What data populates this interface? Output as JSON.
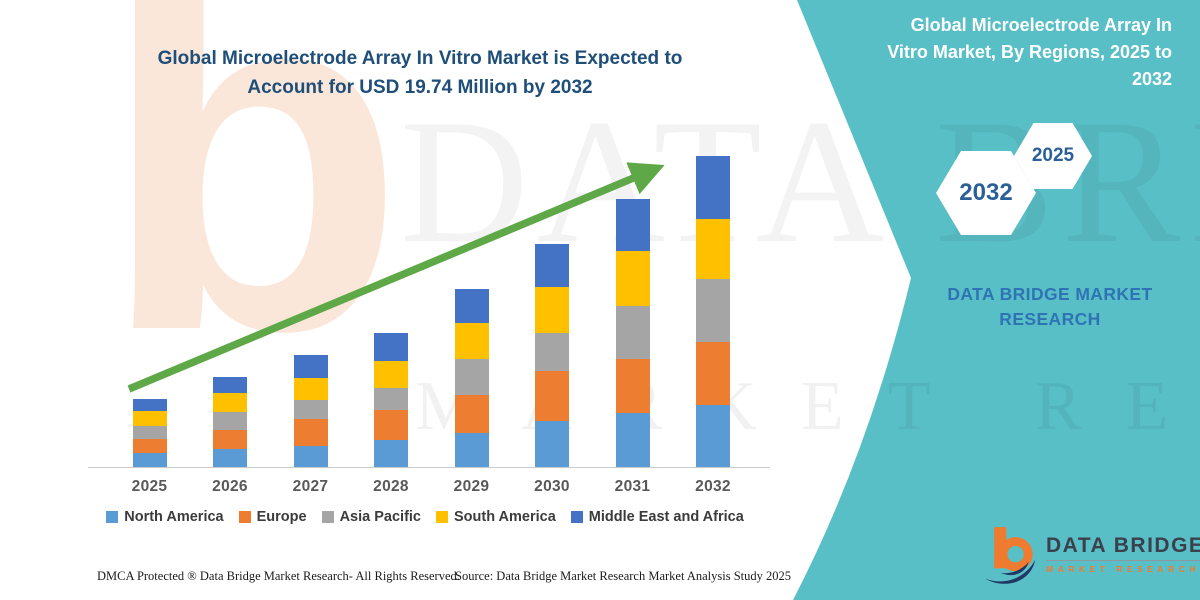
{
  "colors": {
    "teal": "#59BFC6",
    "title_navy": "#1F4E79",
    "brand_blue": "#2E74B5",
    "hex_navy": "#2B5F97",
    "axis_label_gray": "#595959",
    "legend_text": "#3B3B3B",
    "arrow_green": "#5FA848",
    "logo_orange": "#EE7B2F",
    "logo_navy": "#1F3864",
    "logo_gray": "#3A414D"
  },
  "chart": {
    "title_line1": "Global Microelectrode Array In Vitro Market is Expected to",
    "title_line2": "Account for USD 19.74 Million by 2032"
  },
  "chart_data": {
    "type": "bar",
    "stacked": true,
    "title": "Global Microelectrode Array In Vitro Market is Expected to Account for USD 19.74 Million by 2032",
    "unit": "USD Million",
    "xlabel": "",
    "ylabel": "",
    "grid": false,
    "legend_position": "bottom",
    "trend_arrow": true,
    "annotation": "USD 19.74 Million by 2032",
    "categories": [
      "2025",
      "2026",
      "2027",
      "2028",
      "2029",
      "2030",
      "2031",
      "2032"
    ],
    "series": [
      {
        "name": "North America",
        "color": "#5B9BD5",
        "values": [
          0.89,
          1.14,
          1.33,
          1.71,
          2.16,
          2.92,
          3.43,
          3.94
        ]
      },
      {
        "name": "Europe",
        "color": "#ED7D31",
        "values": [
          0.89,
          1.21,
          1.71,
          1.9,
          2.41,
          3.17,
          3.43,
          4.0
        ]
      },
      {
        "name": "Asia Pacific",
        "color": "#A5A5A5",
        "values": [
          0.83,
          1.14,
          1.21,
          1.4,
          2.29,
          2.41,
          3.36,
          4.0
        ]
      },
      {
        "name": "South America",
        "color": "#FFC000",
        "values": [
          0.95,
          1.21,
          1.4,
          1.71,
          2.29,
          2.92,
          3.49,
          3.81
        ]
      },
      {
        "name": "Middle East and Africa",
        "color": "#4472C4",
        "values": [
          0.76,
          1.02,
          1.46,
          1.78,
          2.16,
          2.73,
          3.3,
          3.99
        ]
      }
    ],
    "totals": [
      4.32,
      5.72,
      7.11,
      8.5,
      11.31,
      14.15,
      17.01,
      19.74
    ]
  },
  "right_panel": {
    "title_line1": "Global Microelectrode Array In",
    "title_line2": "Vitro Market, By Regions, 2025 to",
    "title_line3": "2032",
    "hex_large_label": "2032",
    "hex_small_label": "2025",
    "brand_line1": "DATA BRIDGE MARKET",
    "brand_line2": "RESEARCH"
  },
  "logo": {
    "title": "DATA BRIDGE",
    "subtitle": "MARKET RESEARCH"
  },
  "footer": {
    "dmca": "DMCA Protected ® Data Bridge Market Research-  All Rights Reserved.",
    "source": "Source: Data Bridge Market Research  Market Analysis Study 2025"
  },
  "watermark": {
    "b": "b",
    "big": "DATA BRID",
    "row2": "MARKET RESEARCH"
  }
}
